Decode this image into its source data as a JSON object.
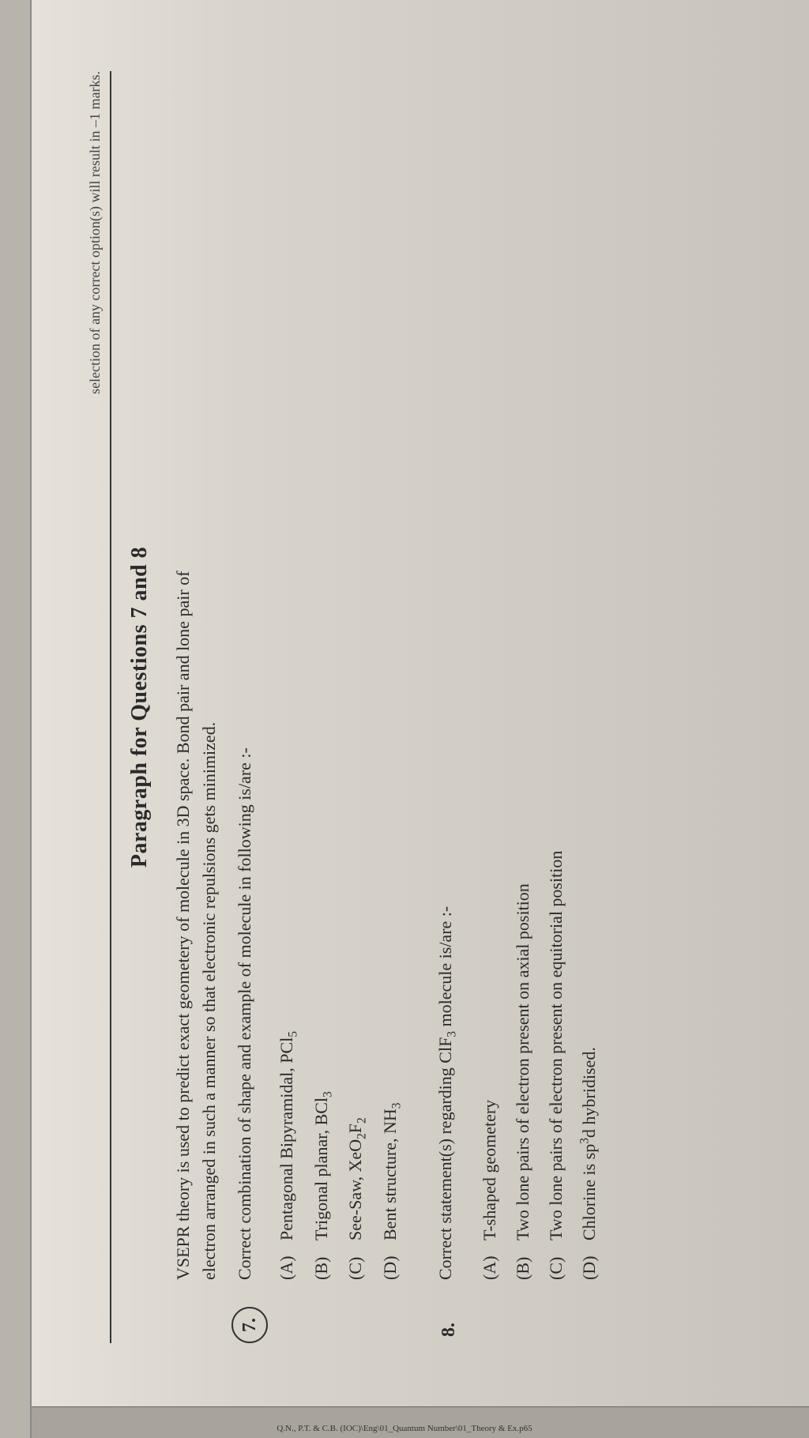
{
  "page": {
    "background_color": "#d8d4cc",
    "text_color": "#2a2a2a",
    "font_family": "Georgia, Times New Roman, serif"
  },
  "header": {
    "partial_text": "selection of any correct option(s) will result in –1 marks."
  },
  "paragraph_title": "Paragraph for Questions 7 and 8",
  "intro": {
    "line1": "VSEPR theory is used to predict exact geometery of molecule in 3D space. Bond pair and lone pair of",
    "line2": "electron arranged in such a manner so that electronic repulsions gets minimized."
  },
  "question7": {
    "number": "7.",
    "text": "Correct combination of shape and example of molecule in following is/are :-",
    "options": {
      "A": {
        "letter": "(A)",
        "text_pre": "Pentagonal Bipyramidal, PCl",
        "sub": "5"
      },
      "B": {
        "letter": "(B)",
        "text_pre": "Trigonal planar, BCl",
        "sub": "3"
      },
      "C": {
        "letter": "(C)",
        "text_pre": "See-Saw, XeO",
        "sub1": "2",
        "mid": "F",
        "sub2": "2"
      },
      "D": {
        "letter": "(D)",
        "text_pre": "Bent structure, NH",
        "sub": "3"
      }
    }
  },
  "question8": {
    "number": "8.",
    "text_pre": "Correct statement(s) regarding ClF",
    "text_sub": "3",
    "text_post": " molecule is/are :-",
    "options": {
      "A": {
        "letter": "(A)",
        "text": "T-shaped geometery"
      },
      "B": {
        "letter": "(B)",
        "text": "Two lone pairs of electron present on axial position"
      },
      "C": {
        "letter": "(C)",
        "text": "Two lone pairs of electron present on equitorial position"
      },
      "D": {
        "letter": "(D)",
        "text_pre": "Chlorine is sp",
        "sup": "3",
        "text_post": "d hybridised."
      }
    }
  },
  "spine": {
    "text": "Q.N., P.T. & C.B. (IOC)\\Eng\\01_Quantum Number\\01_Theory & Ex.p65"
  }
}
